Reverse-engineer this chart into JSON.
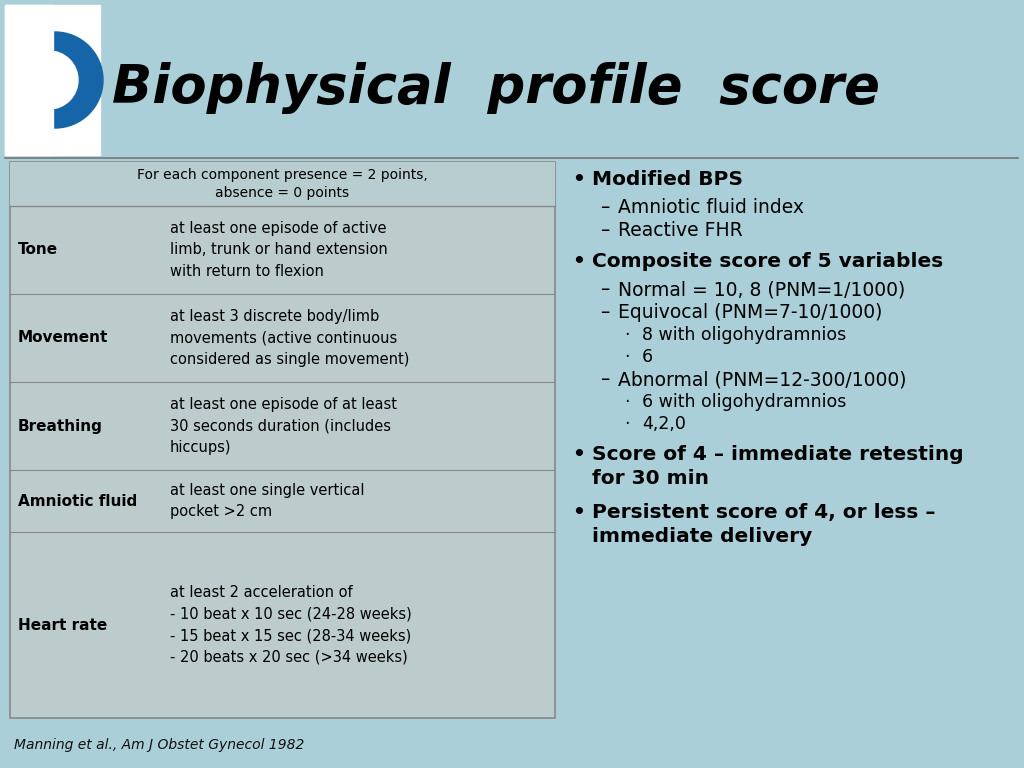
{
  "bg_color": "#aacfd8",
  "title": "Biophysical  profile  score",
  "title_fontsize": 38,
  "title_color": "#000000",
  "header_bg": "#b8cdd0",
  "table_bg": "#bccbcc",
  "table_border": "#888888",
  "table_header": "For each component presence = 2 points,\nabsence = 0 points",
  "table_rows": [
    [
      "Tone",
      "at least one episode of active\nlimb, trunk or hand extension\nwith return to flexion"
    ],
    [
      "Movement",
      "at least 3 discrete body/limb\nmovements (active continuous\nconsidered as single movement)"
    ],
    [
      "Breathing",
      "at least one episode of at least\n30 seconds duration (includes\nhiccups)"
    ],
    [
      "Amniotic fluid",
      "at least one single vertical\npocket >2 cm"
    ],
    [
      "Heart rate",
      "at least 2 acceleration of\n- 10 beat x 10 sec (24-28 weeks)\n- 15 beat x 15 sec (28-34 weeks)\n- 20 beats x 20 sec (>34 weeks)"
    ]
  ],
  "right_content": [
    {
      "level": 0,
      "bullet": "•",
      "text": "Modified BPS",
      "bold": true,
      "extra_gap": false
    },
    {
      "level": 1,
      "bullet": "–",
      "text": "Amniotic fluid index",
      "bold": false,
      "extra_gap": false
    },
    {
      "level": 1,
      "bullet": "–",
      "text": "Reactive FHR",
      "bold": false,
      "extra_gap": true
    },
    {
      "level": 0,
      "bullet": "•",
      "text": "Composite score of 5 variables",
      "bold": true,
      "extra_gap": false
    },
    {
      "level": 1,
      "bullet": "–",
      "text": "Normal = 10, 8 (PNM=1/1000)",
      "bold": false,
      "extra_gap": false
    },
    {
      "level": 1,
      "bullet": "–",
      "text": "Equivocal (PNM=7-10/1000)",
      "bold": false,
      "extra_gap": false
    },
    {
      "level": 2,
      "bullet": "·",
      "text": "8 with oligohydramnios",
      "bold": false,
      "extra_gap": false
    },
    {
      "level": 2,
      "bullet": "·",
      "text": "6",
      "bold": false,
      "extra_gap": false
    },
    {
      "level": 1,
      "bullet": "–",
      "text": "Abnormal (PNM=12-300/1000)",
      "bold": false,
      "extra_gap": false
    },
    {
      "level": 2,
      "bullet": "·",
      "text": "6 with oligohydramnios",
      "bold": false,
      "extra_gap": false
    },
    {
      "level": 2,
      "bullet": "·",
      "text": "4,2,0",
      "bold": false,
      "extra_gap": true
    },
    {
      "level": 0,
      "bullet": "•",
      "text": "Score of 4 – immediate retesting\nfor 30 min",
      "bold": true,
      "extra_gap": true
    },
    {
      "level": 0,
      "bullet": "•",
      "text": "Persistent score of 4, or less –\nimmediate delivery",
      "bold": true,
      "extra_gap": false
    }
  ],
  "citation": "Manning et al., Am J Obstet Gynecol 1982",
  "logo_color_outer": "#1565a8",
  "logo_color_inner": "#ffffff",
  "logo_bg": "#ffffff"
}
